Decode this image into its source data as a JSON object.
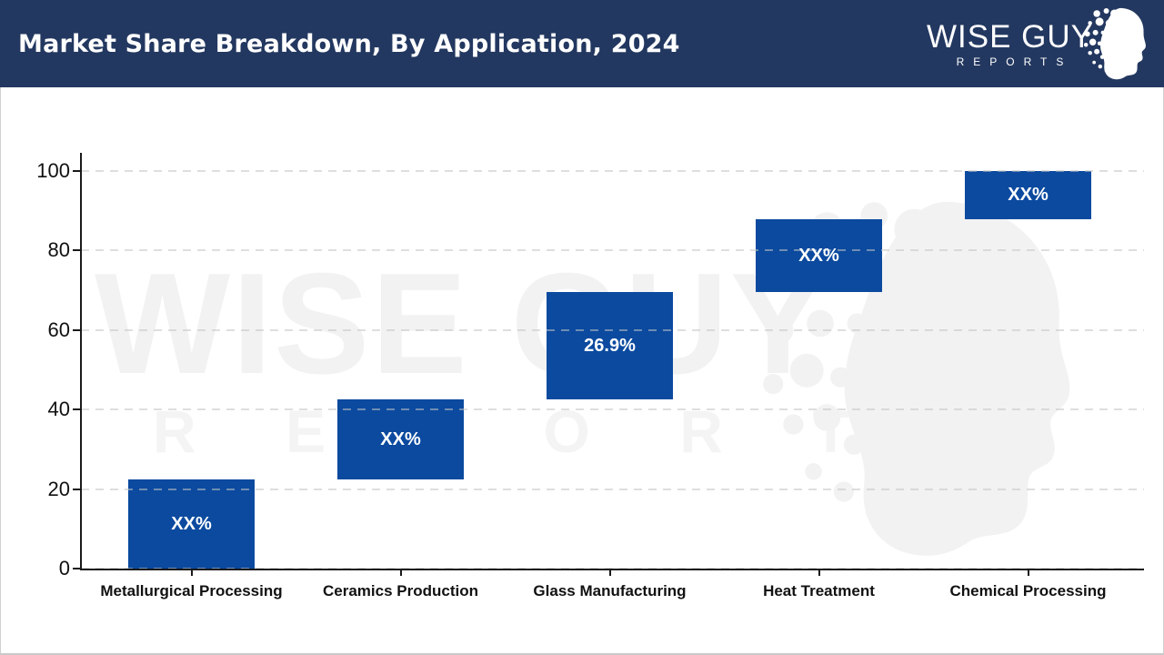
{
  "header": {
    "title": "Market Share Breakdown, By Application, 2024",
    "logo": {
      "name": "WISE GUY",
      "subname": "REPORTS",
      "icon": "dotted-face-profile"
    }
  },
  "watermark": {
    "line1": "WISE GUY",
    "line2": "R E P O R T S",
    "icon": "dotted-face-profile"
  },
  "chart_data": {
    "type": "bar",
    "subtype": "waterfall",
    "title": "Market Share Breakdown, By Application, 2024",
    "categories": [
      "Metallurgical Processing",
      "Ceramics Production",
      "Glass Manufacturing",
      "Heat Treatment",
      "Chemical Processing"
    ],
    "series": [
      {
        "name": "Market share segment",
        "starts": [
          0,
          22.4,
          42.6,
          69.5,
          87.7
        ],
        "ends": [
          22.4,
          42.6,
          69.5,
          87.7,
          100
        ],
        "bar_labels": [
          "XX%",
          "XX%",
          "26.9%",
          "XX%",
          "XX%"
        ]
      }
    ],
    "xlabel": "",
    "ylabel": "",
    "ylim": [
      0,
      100
    ],
    "yticks": [
      0,
      20,
      40,
      60,
      80,
      100
    ],
    "grid": "horizontal-dashed",
    "legend": "none",
    "colors": {
      "bar": "#0b4a9f",
      "bar_label": "#ffffff",
      "axis": "#1a1a1a",
      "gridline": "#dddddd",
      "header_bg": "#233860",
      "header_text": "#ffffff",
      "watermark": "#f2f2f2"
    }
  }
}
